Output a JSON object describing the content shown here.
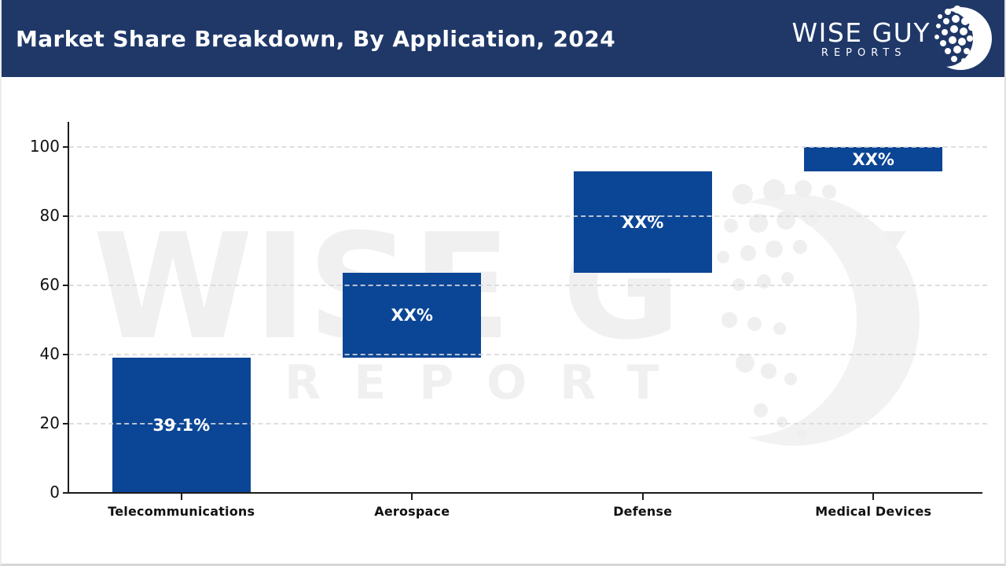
{
  "header": {
    "title": "Market Share Breakdown, By Application, 2024",
    "logo": {
      "line1": "WISE GUY",
      "line2": "REPORTS"
    }
  },
  "watermark": {
    "line1": "WISE GUY",
    "line2": "REPORTS"
  },
  "colors": {
    "header_bg": "#1f3868",
    "bar": "#0b4596",
    "bar_label": "#ffffff",
    "gridline": "#d9d9d9",
    "axis": "#1c1c1c",
    "watermark": "#f0f0f0"
  },
  "chart_data": {
    "type": "bar",
    "subtype": "waterfall",
    "title": "Market Share Breakdown, By Application, 2024",
    "categories": [
      "Telecommunications",
      "Aerospace",
      "Defense",
      "Medical Devices"
    ],
    "segments": [
      {
        "category": "Telecommunications",
        "start": 0,
        "end": 39.1,
        "label": "39.1%"
      },
      {
        "category": "Aerospace",
        "start": 39.1,
        "end": 63.6,
        "label": "XX%"
      },
      {
        "category": "Defense",
        "start": 63.6,
        "end": 92.9,
        "label": "XX%"
      },
      {
        "category": "Medical Devices",
        "start": 92.9,
        "end": 100,
        "label": "XX%"
      }
    ],
    "ylim": [
      0,
      100
    ],
    "yticks": [
      0,
      20,
      40,
      60,
      80,
      100
    ],
    "xlabel": "",
    "ylabel": "",
    "grid": "horizontal-dashed",
    "legend": "none"
  }
}
